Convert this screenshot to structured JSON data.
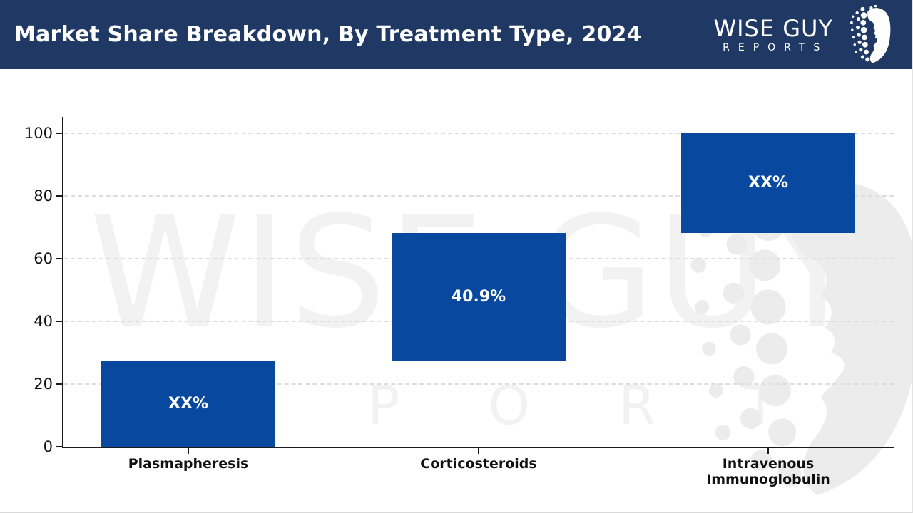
{
  "header": {
    "title": "Market Share Breakdown, By Treatment Type, 2024",
    "logo": {
      "line1": "WISE GUY",
      "line2": "REPORTS"
    }
  },
  "watermark": {
    "line1": "WISE GUY",
    "line2": "R E P O R T S"
  },
  "chart_data": {
    "type": "bar",
    "subtype": "floating-waterfall",
    "title": "Market Share Breakdown, By Treatment Type, 2024",
    "categories": [
      "Plasmapheresis",
      "Corticosteroids",
      "Intravenous Immunoglobulin"
    ],
    "bars": [
      {
        "category": "Plasmapheresis",
        "start": 0,
        "end": 27.3,
        "value_label": "XX%"
      },
      {
        "category": "Corticosteroids",
        "start": 27.3,
        "end": 68.2,
        "value_label": "40.9%"
      },
      {
        "category": "Intravenous Immunoglobulin",
        "start": 68.2,
        "end": 100,
        "value_label": "XX%"
      }
    ],
    "xlabel": "",
    "ylabel": "",
    "ylim": [
      0,
      100
    ],
    "yticks": [
      0,
      20,
      40,
      60,
      80,
      100
    ],
    "grid": "horizontal-dashed",
    "legend": "none",
    "colors": {
      "bar": "#08489f",
      "bar_label": "#ffffff",
      "axis": "#1a1a1a",
      "gridline": "#dddddd",
      "header_bg": "#1f3864",
      "header_text": "#ffffff",
      "watermark": "#f2f2f2"
    }
  }
}
